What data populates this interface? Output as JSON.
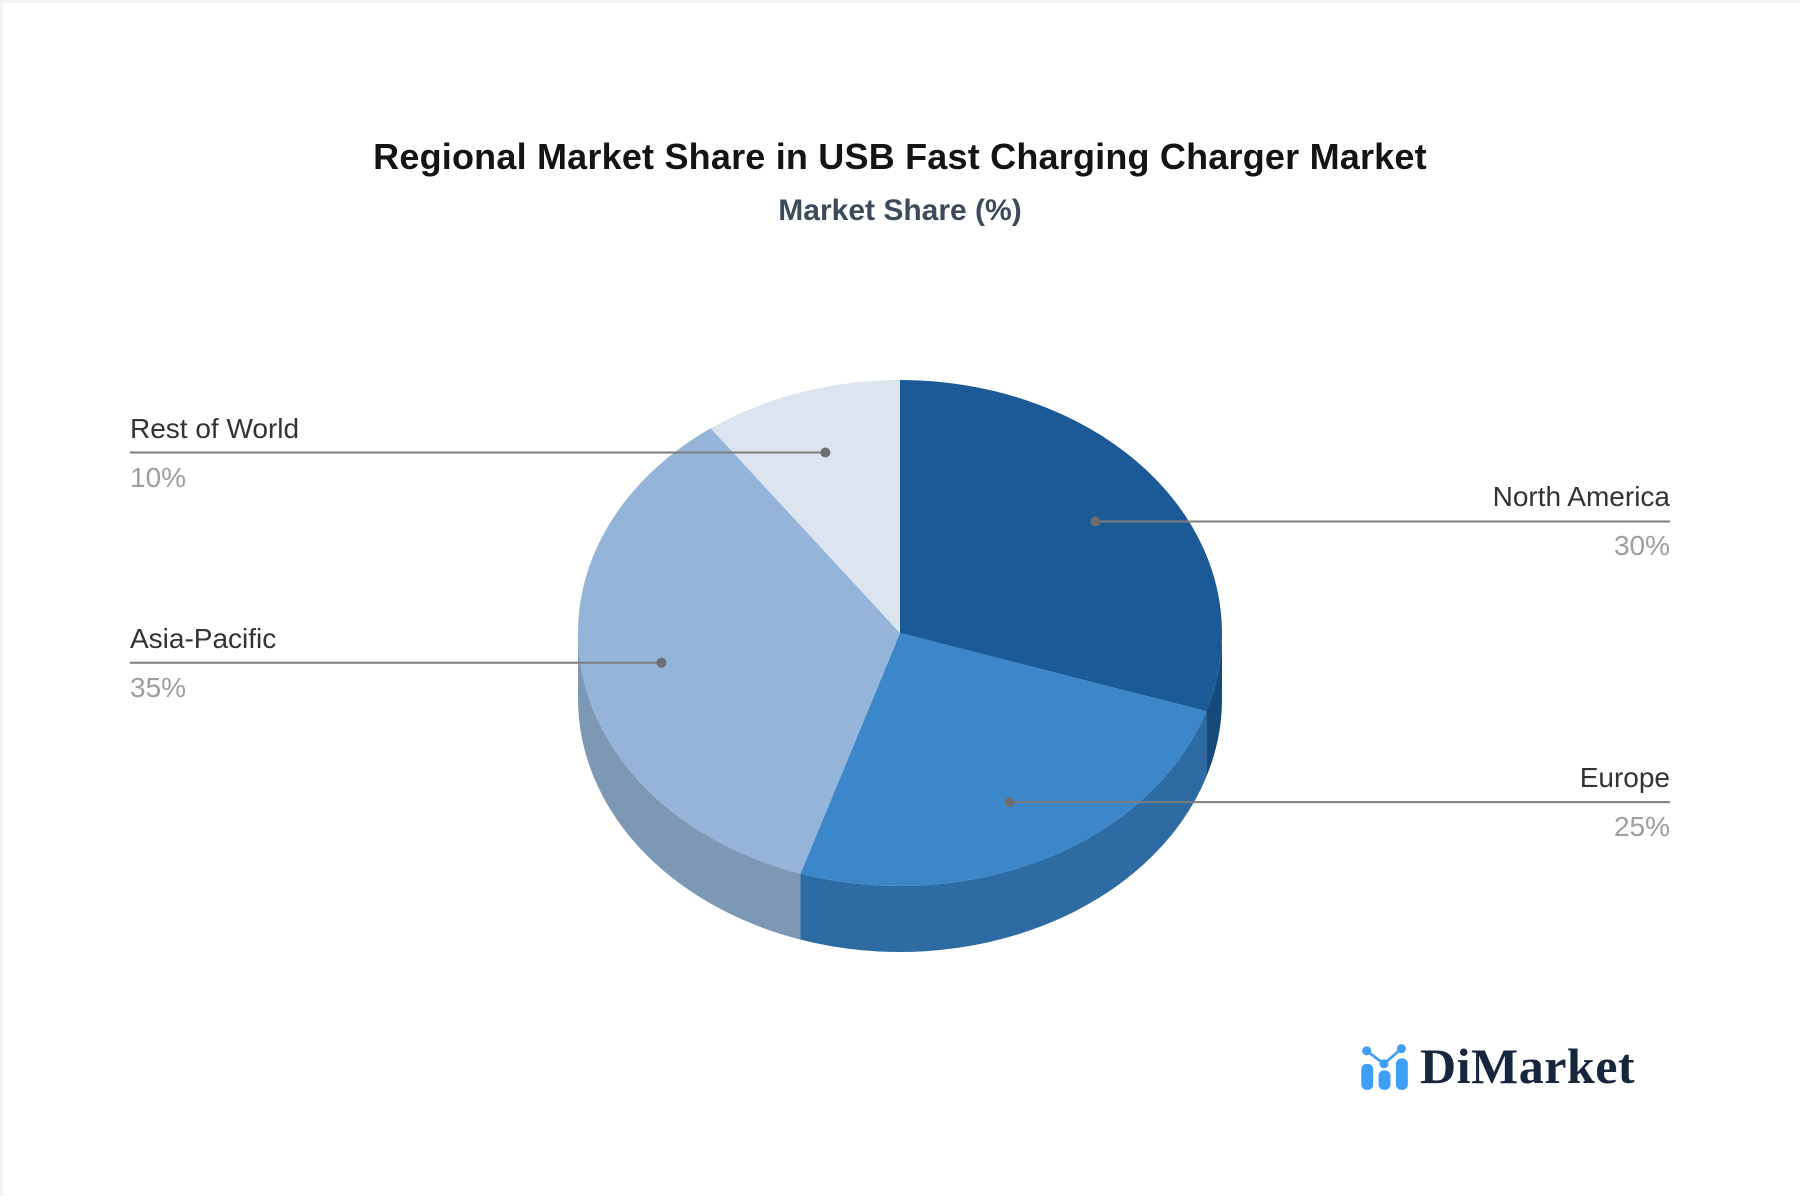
{
  "chart_data": {
    "type": "pie",
    "title": "Regional Market Share in USB Fast Charging Charger Market",
    "subtitle": "Market Share (%)",
    "unit": "%",
    "start_angle": "12-oclock-clockwise",
    "legend": "none",
    "effect": "3d-depth",
    "segments": [
      {
        "label": "North America",
        "value": 30,
        "display": "30%",
        "color": "#1b5a96",
        "side_color": "#154a7d",
        "label_side": "right"
      },
      {
        "label": "Europe",
        "value": 25,
        "display": "25%",
        "color": "#3c87c9",
        "side_color": "#2e6ba3",
        "label_side": "right"
      },
      {
        "label": "Asia-Pacific",
        "value": 35,
        "display": "35%",
        "color": "#94b5d9",
        "side_color": "#7d98b4",
        "label_side": "left"
      },
      {
        "label": "Rest of World",
        "value": 10,
        "display": "10%",
        "color": "#dce4f0",
        "side_color": "#c3cfdf",
        "label_side": "left"
      }
    ],
    "style": {
      "leader_line_color": "#7d7d7d",
      "leader_dot_color": "#6f6f6f",
      "label_name_color": "#333333",
      "label_value_color": "#9e9e9e",
      "title_color": "#141414",
      "subtitle_color": "#3d4a5c"
    }
  },
  "branding": {
    "logo_text": "DiMarket",
    "logo_icon": "bar-chart-trend-icon",
    "logo_text_color": "#17253d",
    "logo_icon_color": "#3f9ef7"
  }
}
